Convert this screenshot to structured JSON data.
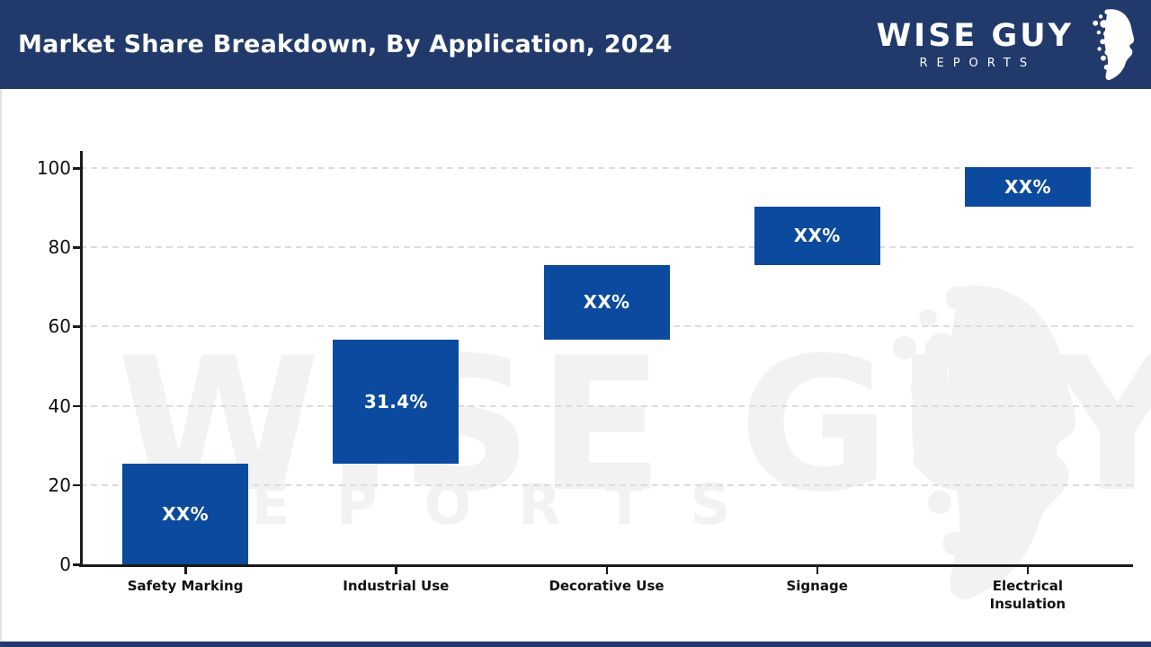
{
  "header": {
    "title": "Market Share Breakdown, By Application, 2024",
    "logo": {
      "line1": "WISE GUY",
      "line2": "REPORTS"
    }
  },
  "watermark": {
    "line1": "WISE GUY",
    "line2": "REPORTS"
  },
  "chart_data": {
    "type": "bar",
    "subtype": "floating-waterfall",
    "title": "Market Share Breakdown, By Application, 2024",
    "categories": [
      "Safety Marking",
      "Industrial Use",
      "Decorative Use",
      "Signage",
      "Electrical Insulation"
    ],
    "bar_labels": [
      "XX%",
      "31.4%",
      "XX%",
      "XX%",
      "XX%"
    ],
    "segment_starts": [
      0,
      25.3,
      56.7,
      75.6,
      90.3
    ],
    "values": [
      25.3,
      31.4,
      18.9,
      14.7,
      9.9
    ],
    "xlabel": "",
    "ylabel": "",
    "yticks": [
      0,
      20,
      40,
      60,
      80,
      100
    ],
    "ylim": [
      0,
      105
    ],
    "grid": "dashed horizontal",
    "legend": "none",
    "colors": {
      "bar": "#0b4a9e",
      "header_bg": "#213a6b",
      "grid": "#dcdcdc",
      "axis": "#1a1a1a",
      "bar_label_text": "#ffffff",
      "watermark": "#f2f2f2"
    }
  }
}
